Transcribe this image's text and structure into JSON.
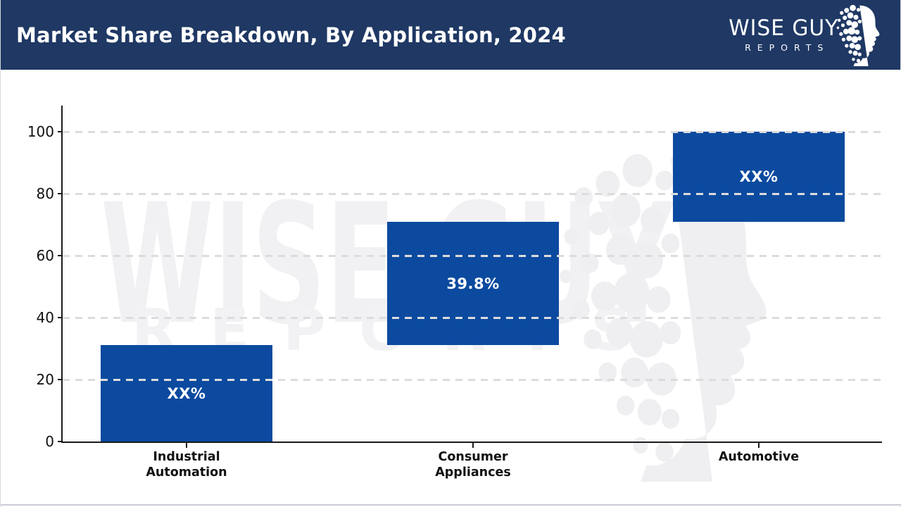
{
  "header": {
    "title": "Market Share Breakdown, By Application, 2024",
    "bg_color": "#1f3864",
    "logo": {
      "line1": "WISE GUY",
      "line2": "REPORTS"
    }
  },
  "watermark": {
    "line1": "WISE GUY",
    "line2": "REPORTS"
  },
  "chart_data": {
    "type": "bar",
    "subtype": "floating-waterfall",
    "title": "Market Share Breakdown, By Application, 2024",
    "categories": [
      "Industrial Automation",
      "Consumer Appliances",
      "Automotive"
    ],
    "category_lines": [
      [
        "Industrial",
        "Automation"
      ],
      [
        "Consumer",
        "Appliances"
      ],
      [
        "Automotive"
      ]
    ],
    "bars": [
      {
        "category": "Industrial Automation",
        "start": 0,
        "end": 31.1,
        "height": 31.1,
        "label": "XX%"
      },
      {
        "category": "Consumer Appliances",
        "start": 31.1,
        "end": 70.9,
        "height": 39.8,
        "label": "39.8%"
      },
      {
        "category": "Automotive",
        "start": 70.9,
        "end": 100,
        "height": 29.1,
        "label": "XX%"
      }
    ],
    "ylim": [
      0,
      100
    ],
    "yticks": [
      0,
      20,
      40,
      60,
      80,
      100
    ],
    "grid": "dashed-horizontal",
    "legend": "none",
    "bar_color": "#0b4a9f",
    "bar_label_color": "#ffffff",
    "axis_color": "#1a1a1a",
    "grid_color": "#dcdcdc"
  }
}
